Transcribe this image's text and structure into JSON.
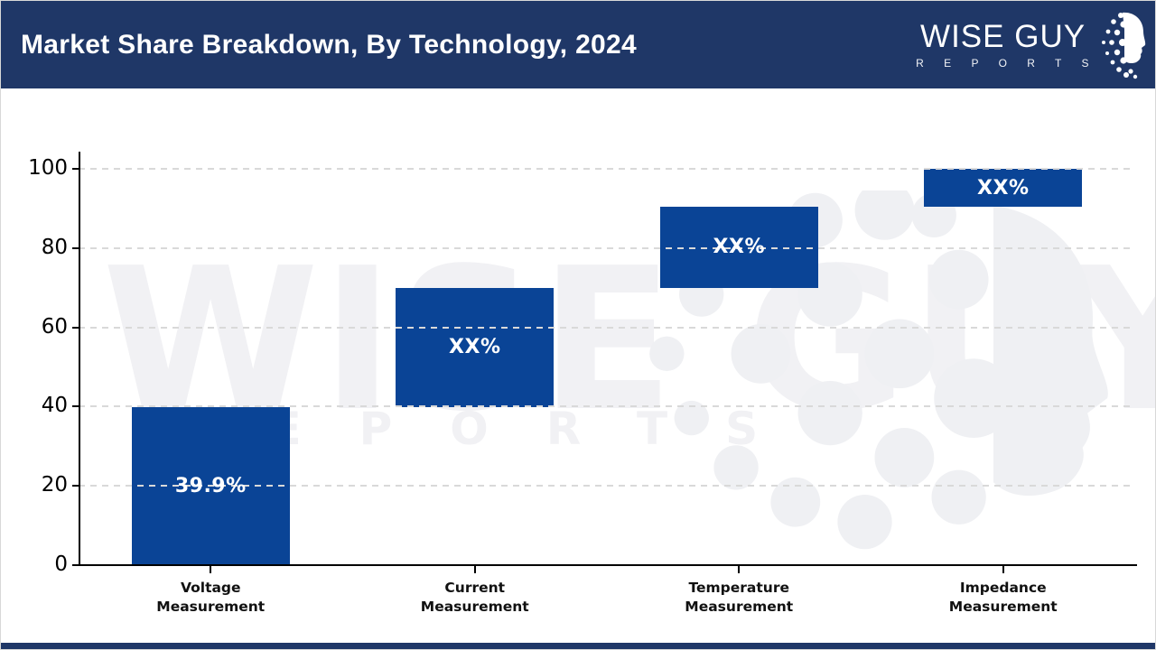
{
  "header": {
    "title": "Market Share Breakdown, By Technology, 2024",
    "logo": {
      "line1": "WISE GUY",
      "line2": "R E P O R T S"
    }
  },
  "watermark": {
    "line1": "WISE GUY",
    "line2": "REPORTS"
  },
  "chart_data": {
    "type": "bar",
    "subtype": "waterfall-stacked-percentage",
    "title": "Market Share Breakdown, By Technology, 2024",
    "categories": [
      {
        "line1": "Voltage",
        "line2": "Measurement"
      },
      {
        "line1": "Current",
        "line2": "Measurement"
      },
      {
        "line1": "Temperature",
        "line2": "Measurement"
      },
      {
        "line1": "Impedance",
        "line2": "Measurement"
      }
    ],
    "segments": [
      {
        "category": "Voltage Measurement",
        "start": 0,
        "end": 39.9,
        "label": "39.9%"
      },
      {
        "category": "Current Measurement",
        "start": 39.9,
        "end": 70,
        "label": "XX%"
      },
      {
        "category": "Temperature Measurement",
        "start": 70,
        "end": 90.4,
        "label": "XX%"
      },
      {
        "category": "Impedance Measurement",
        "start": 90.4,
        "end": 100,
        "label": "XX%"
      }
    ],
    "xlabel": "",
    "ylabel": "",
    "ylim": [
      0,
      100
    ],
    "yticks": [
      0,
      20,
      40,
      60,
      80,
      100
    ],
    "grid": "horizontal-dashed",
    "legend": "none",
    "colors": {
      "bar": "#0a4496",
      "bar_label": "#ffffff",
      "header_band": "#1f3767",
      "axis": "#000000",
      "gridline": "#d9d9d9",
      "watermark": "#f1f1f4"
    }
  }
}
